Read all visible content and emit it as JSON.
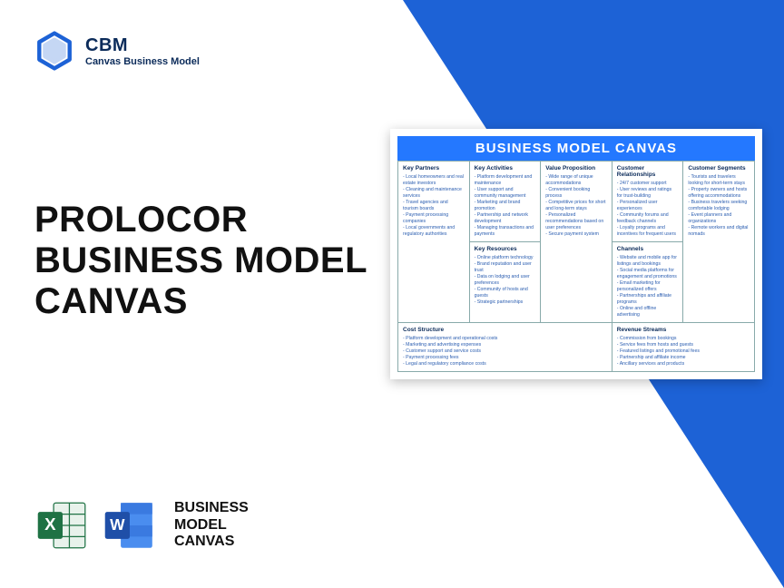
{
  "brand": {
    "abbr": "CBM",
    "full": "Canvas Business Model",
    "logo_color": "#1d62d6"
  },
  "main_title_lines": [
    "PROLOCOR",
    "BUSINESS MODEL",
    "CANVAS"
  ],
  "formats_label_lines": [
    "BUSINESS",
    "MODEL",
    "CANVAS"
  ],
  "excel_color": "#1f7244",
  "word_color": "#2b6bd6",
  "bg_color": "#1d62d6",
  "canvas": {
    "title": "BUSINESS MODEL CANVAS",
    "title_bg": "#2478ff",
    "border_color": "#8aa",
    "text_color": "#2a5db0",
    "header_color": "#0b2b5a",
    "cells": {
      "kp": {
        "label": "Key Partners",
        "items": [
          "Local homeowners and real estate investors",
          "Cleaning and maintenance services",
          "Travel agencies and tourism boards",
          "Payment processing companies",
          "Local governments and regulatory authorities"
        ]
      },
      "ka": {
        "label": "Key Activities",
        "items": [
          "Platform development and maintenance",
          "User support and community management",
          "Marketing and brand promotion",
          "Partnership and network development",
          "Managing transactions and payments"
        ]
      },
      "kr": {
        "label": "Key Resources",
        "items": [
          "Online platform technology",
          "Brand reputation and user trust",
          "Data on lodging and user preferences",
          "Community of hosts and guests",
          "Strategic partnerships"
        ]
      },
      "vp": {
        "label": "Value Proposition",
        "items": [
          "Wide range of unique accommodations",
          "Convenient booking process",
          "Competitive prices for short and long-term stays",
          "Personalized recommendations based on user preferences",
          "Secure payment system"
        ]
      },
      "cr": {
        "label": "Customer Relationships",
        "items": [
          "24/7 customer support",
          "User reviews and ratings for trust-building",
          "Personalized user experiences",
          "Community forums and feedback channels",
          "Loyalty programs and incentives for frequent users"
        ]
      },
      "ch": {
        "label": "Channels",
        "items": [
          "Website and mobile app for listings and bookings",
          "Social media platforms for engagement and promotions",
          "Email marketing for personalized offers",
          "Partnerships and affiliate programs",
          "Online and offline advertising"
        ]
      },
      "cs": {
        "label": "Customer Segments",
        "items": [
          "Tourists and travelers looking for short-term stays",
          "Property owners and hosts offering accommodations",
          "Business travelers seeking comfortable lodging",
          "Event planners and organizations",
          "Remote workers and digital nomads"
        ]
      },
      "cost": {
        "label": "Cost Structure",
        "items": [
          "Platform development and operational costs",
          "Marketing and advertising expenses",
          "Customer support and service costs",
          "Payment processing fees",
          "Legal and regulatory compliance costs"
        ]
      },
      "rev": {
        "label": "Revenue Streams",
        "items": [
          "Commission from bookings",
          "Service fees from hosts and guests",
          "Featured listings and promotional fees",
          "Partnership and affiliate income",
          "Ancillary services and products"
        ]
      }
    }
  }
}
